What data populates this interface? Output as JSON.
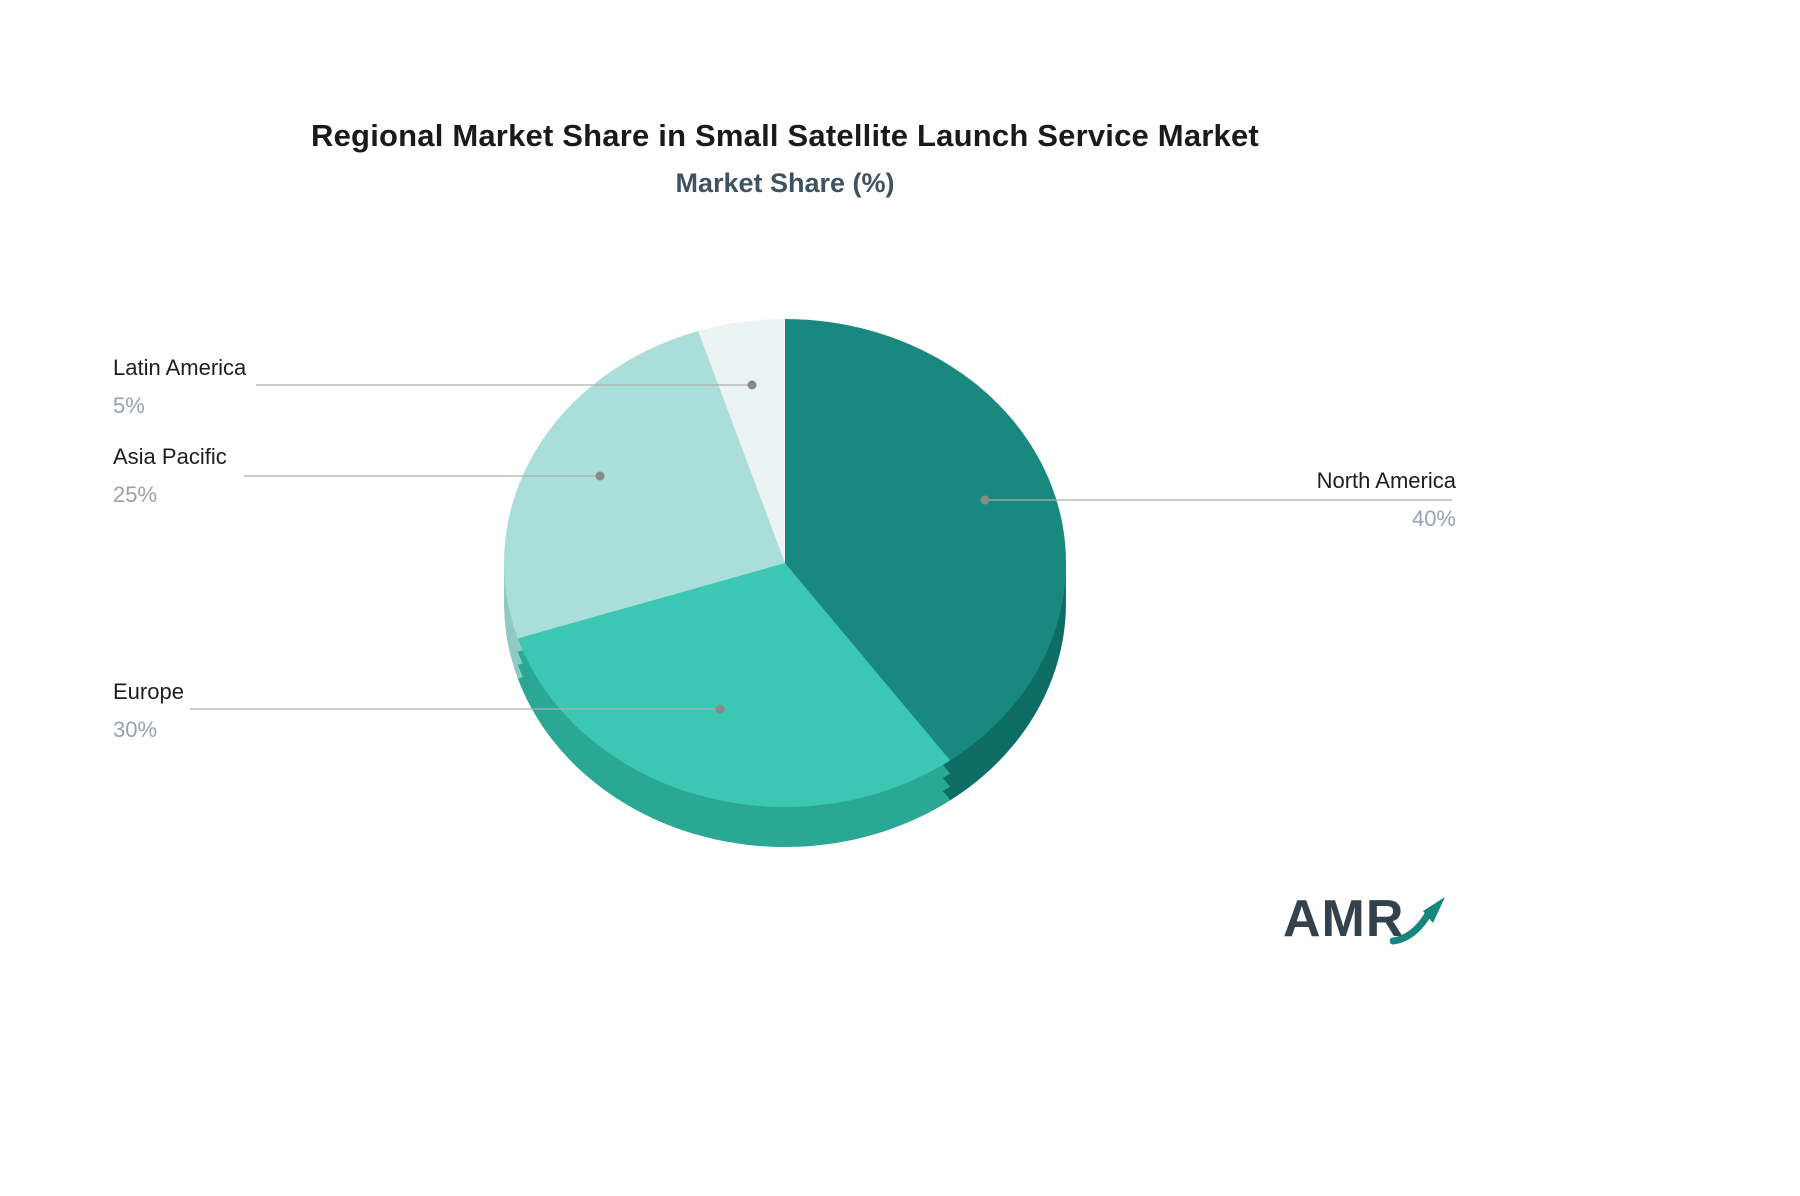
{
  "title": "Regional Market Share in Small Satellite Launch Service Market",
  "subtitle": "Market Share (%)",
  "chart_data": {
    "type": "pie",
    "title": "Regional Market Share in Small Satellite Launch Service Market",
    "subtitle": "Market Share (%)",
    "unit": "%",
    "categories": [
      "North America",
      "Europe",
      "Asia Pacific",
      "Latin America"
    ],
    "values": [
      40,
      30,
      25,
      5
    ],
    "colors": [
      "#19897f",
      "#3cc6b4",
      "#a9ded9",
      "#e9f4f3"
    ],
    "side_colors": [
      "#0e6e66",
      "#2aa795",
      "#8fc9c3",
      "#d2e7e5"
    ],
    "start_angle_deg": 0,
    "direction": "clockwise",
    "legend_position": "none",
    "labels": [
      {
        "name": "North America",
        "value_label": "40%"
      },
      {
        "name": "Europe",
        "value_label": "30%"
      },
      {
        "name": "Asia Pacific",
        "value_label": "25%"
      },
      {
        "name": "Latin America",
        "value_label": "5%"
      }
    ]
  },
  "branding": {
    "logo_text": "AMR"
  }
}
